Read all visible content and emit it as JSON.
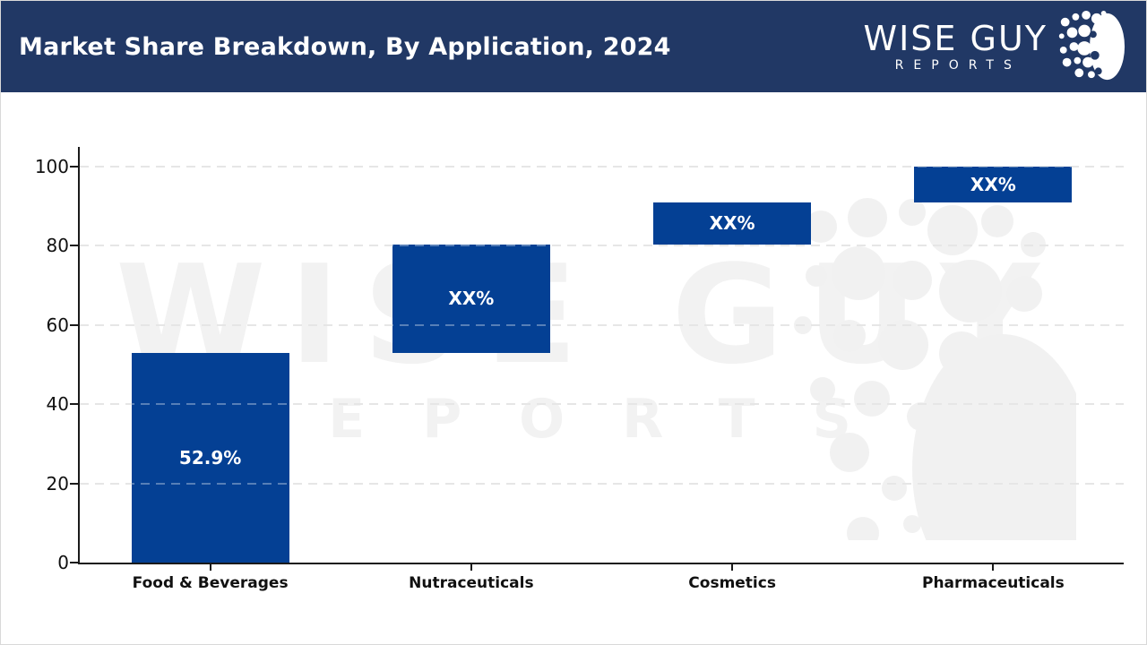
{
  "header": {
    "title": "Market Share Breakdown, By Application, 2024",
    "logo": {
      "line1": "WISE GUY",
      "line2": "REPORTS"
    }
  },
  "watermark": {
    "line1": "WISE GUY",
    "line2": "REPORTS"
  },
  "colors": {
    "header_bg": "#213865",
    "bar": "#044094",
    "bar_label": "#ffffff",
    "axis": "#1a1a1a",
    "grid": "#d9d9d9",
    "watermark": "#f2f2f2"
  },
  "chart_data": {
    "type": "bar",
    "subtype": "waterfall",
    "title": "Market Share Breakdown, By Application, 2024",
    "categories": [
      "Food & Beverages",
      "Nutraceuticals",
      "Cosmetics",
      "Pharmaceuticals"
    ],
    "series": [
      {
        "name": "Market Share %",
        "segments": [
          {
            "category": "Food & Beverages",
            "start": 0,
            "end": 52.9,
            "label": "52.9%"
          },
          {
            "category": "Nutraceuticals",
            "start": 52.9,
            "end": 80.3,
            "label": "XX%"
          },
          {
            "category": "Cosmetics",
            "start": 80.3,
            "end": 90.8,
            "label": "XX%"
          },
          {
            "category": "Pharmaceuticals",
            "start": 90.8,
            "end": 100,
            "label": "XX%"
          }
        ]
      }
    ],
    "xlabel": "",
    "ylabel": "",
    "ylim": [
      0,
      100
    ],
    "yticks": [
      0,
      20,
      40,
      60,
      80,
      100
    ],
    "grid": "dashed-horizontal",
    "legend": "none"
  }
}
